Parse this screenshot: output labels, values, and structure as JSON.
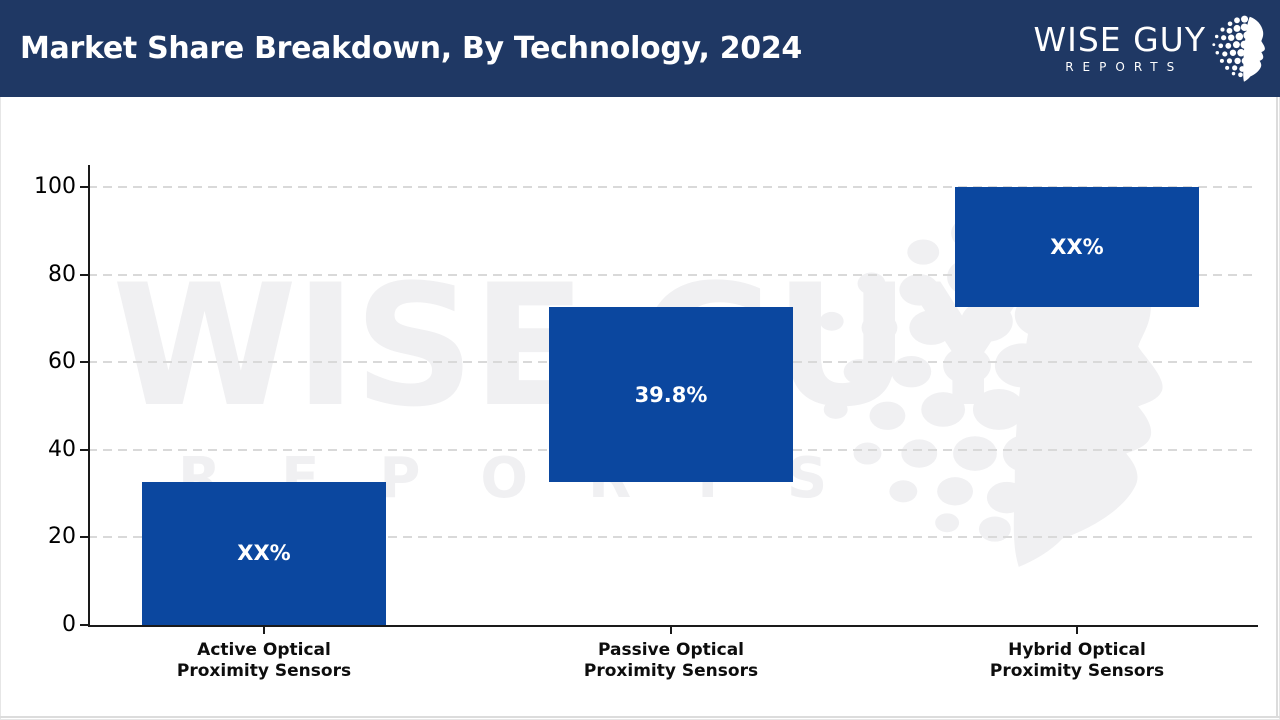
{
  "header": {
    "title": "Market Share Breakdown, By Technology, 2024",
    "logo": {
      "wordmark": "WISE GUY",
      "subtitle": "REPORTS"
    }
  },
  "watermark": {
    "wordmark": "WISE GUY",
    "subtitle": "REPORTS"
  },
  "chart_data": {
    "type": "bar",
    "variant": "floating-stacked-percentage",
    "title": "Market Share Breakdown, By Technology, 2024",
    "categories": [
      [
        "Active Optical",
        "Proximity Sensors"
      ],
      [
        "Passive Optical",
        "Proximity Sensors"
      ],
      [
        "Hybrid Optical",
        "Proximity Sensors"
      ]
    ],
    "segments": [
      {
        "category": "Active Optical Proximity Sensors",
        "start": 0,
        "end": 32.7,
        "label": "XX%"
      },
      {
        "category": "Passive Optical Proximity Sensors",
        "start": 32.7,
        "end": 72.5,
        "label": "39.8%"
      },
      {
        "category": "Hybrid Optical Proximity Sensors",
        "start": 72.5,
        "end": 100,
        "label": "XX%"
      }
    ],
    "ylim": [
      0,
      100
    ],
    "yticks": [
      0,
      20,
      40,
      60,
      80,
      100
    ],
    "xlabel": "",
    "ylabel": "",
    "grid": "horizontal-dashed",
    "legend": "none",
    "colors": {
      "bar": "#0b479f",
      "bar_label": "#ffffff",
      "grid": "#d9d9d9",
      "axis": "#1a1a1a",
      "header_bg": "#1f3864",
      "watermark": "#f0f0f2"
    }
  }
}
